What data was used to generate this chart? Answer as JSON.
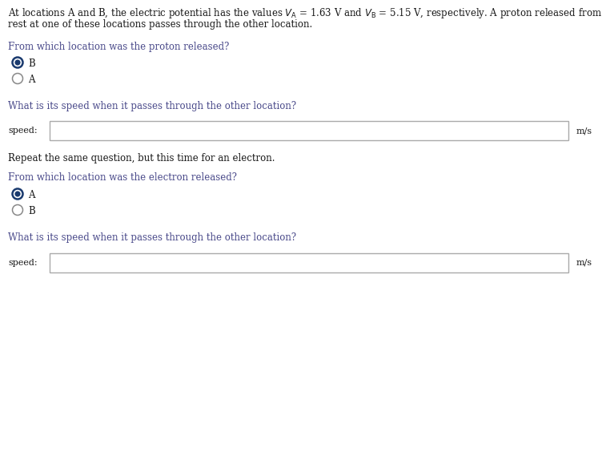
{
  "background_color": "#ffffff",
  "header_text_line1": "At locations A and B, the electric potential has the values $V_\\mathrm{A}$ = 1.63 V and $V_\\mathrm{B}$ = 5.15 V, respectively. A proton released from",
  "header_text_line2": "rest at one of these locations passes through the other location.",
  "q1_label": "From which location was the proton released?",
  "q1_opt1": "B",
  "q1_opt2": "A",
  "q1_opt1_selected": true,
  "q1_opt2_selected": false,
  "q2_label": "What is its speed when it passes through the other location?",
  "speed_label": "speed:",
  "units_label": "m/s",
  "repeat_text": "Repeat the same question, but this time for an electron.",
  "q3_label": "From which location was the electron released?",
  "q3_opt1": "A",
  "q3_opt2": "B",
  "q3_opt1_selected": true,
  "q3_opt2_selected": false,
  "q4_label": "What is its speed when it passes through the other location?",
  "text_color": "#1a1a1a",
  "question_color": "#4a4a8a",
  "teal_color": "#336699",
  "radio_selected_fill": "#1a3a6e",
  "radio_border_unsel": "#888888",
  "box_border_color": "#aaaaaa",
  "font_size_header": 8.5,
  "font_size_q": 8.5,
  "font_size_opt": 8.5,
  "font_size_speed": 8.0,
  "font_size_units": 8.0
}
